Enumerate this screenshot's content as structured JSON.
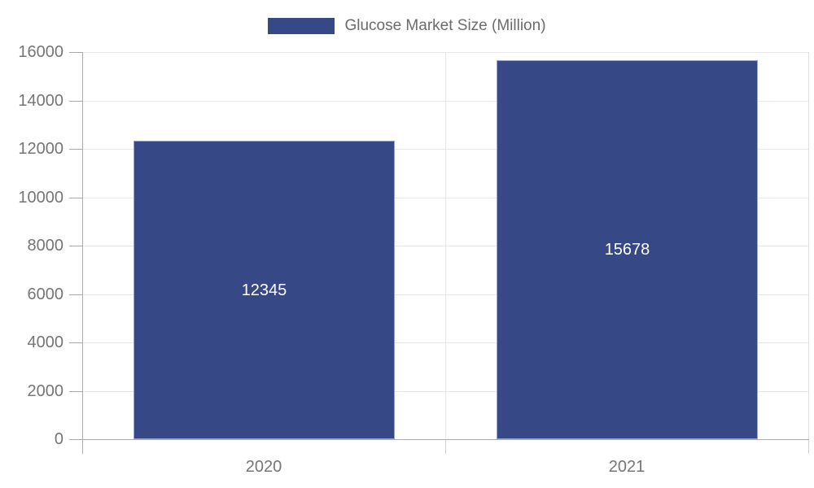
{
  "chart_data": {
    "type": "bar",
    "title": "",
    "legend": [
      {
        "label": "Glucose Market Size (Million)",
        "color": "#374886"
      }
    ],
    "legend_position": "top-center",
    "categories": [
      "2020",
      "2021"
    ],
    "series": [
      {
        "name": "Glucose Market Size (Million)",
        "values": [
          12345,
          15678
        ]
      }
    ],
    "bar_value_labels": [
      "12345",
      "15678"
    ],
    "xlabel": "",
    "ylabel": "",
    "ylim": [
      0,
      16000
    ],
    "ytick_step": 2000,
    "yticks": [
      0,
      2000,
      4000,
      6000,
      8000,
      10000,
      12000,
      14000,
      16000
    ],
    "grid": true,
    "colors": {
      "bar_fill": "#374886",
      "bar_border": "#9aa4cc",
      "bar_label_text": "#ffffff",
      "gridline": "#e7e7e7",
      "axis_line": "#ababab",
      "tick_label_text": "#757575",
      "legend_text": "#6b6b6b",
      "background": "#ffffff"
    }
  }
}
